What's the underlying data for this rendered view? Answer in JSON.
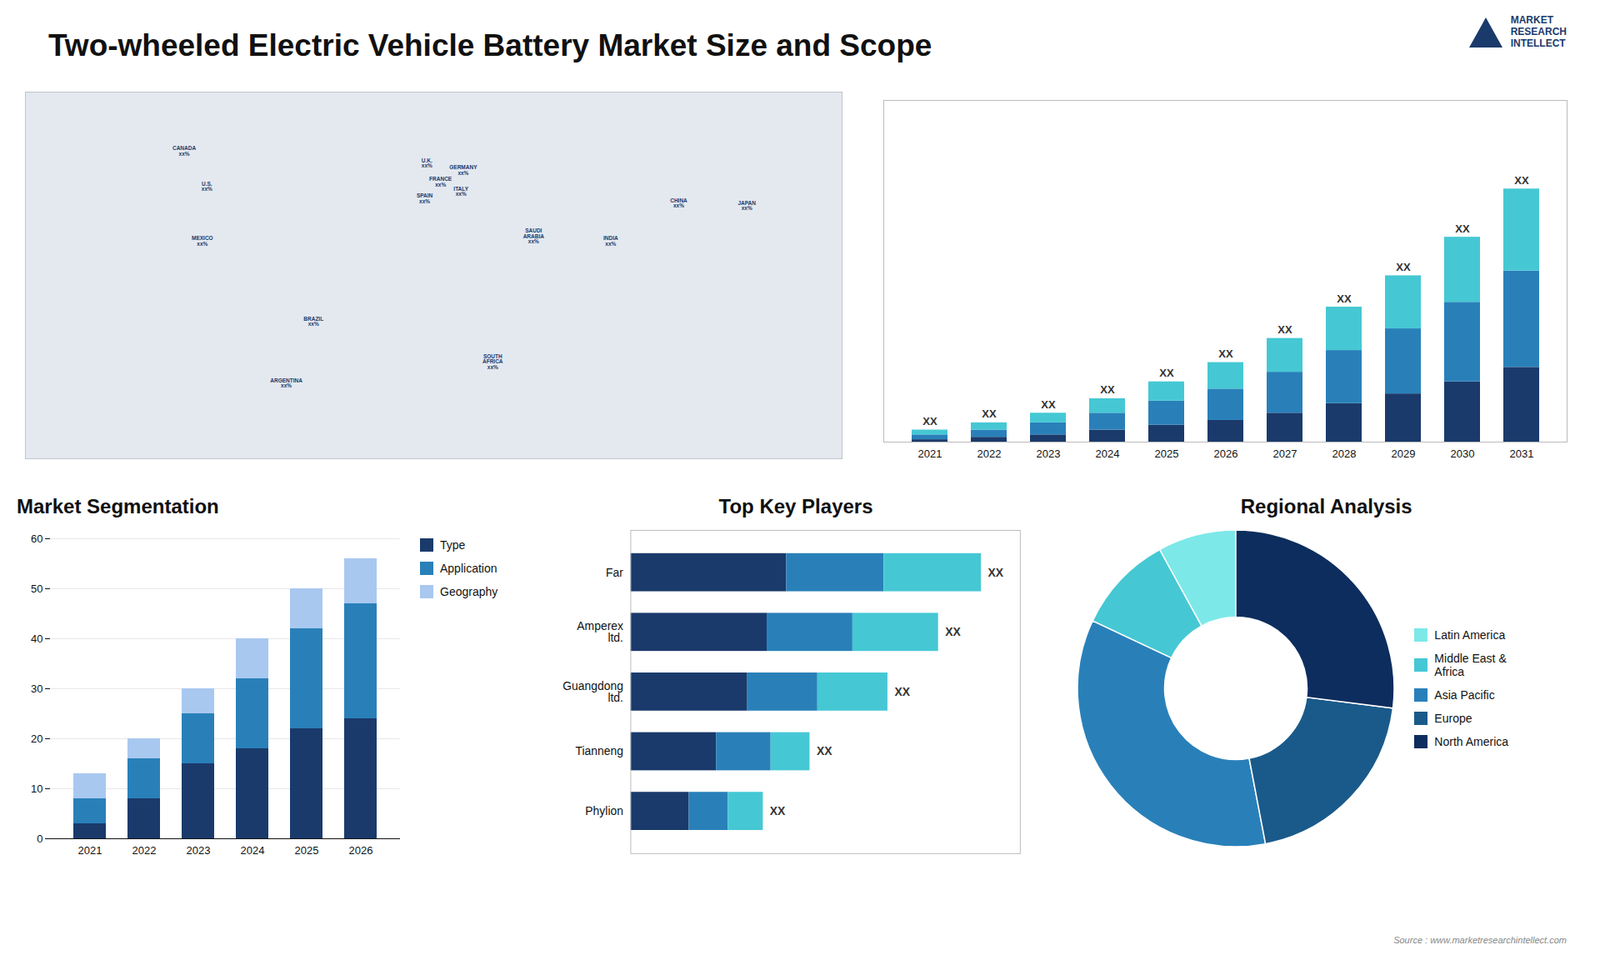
{
  "title": "Two-wheeled Electric Vehicle Battery Market Size and Scope",
  "annotations": [
    "MARKET\nRESEARCH\nINTELLECT",
    "Source : www.marketresearchintellect.com"
  ],
  "chart_data": [
    {
      "type": "map",
      "categories": [
        "CANADA",
        "U.S.",
        "MEXICO",
        "BRAZIL",
        "ARGENTINA",
        "U.K.",
        "FRANCE",
        "SPAIN",
        "GERMANY",
        "ITALY",
        "SAUDI\nARABIA",
        "SOUTH\nAFRICA",
        "CHINA",
        "INDIA",
        "JAPAN"
      ],
      "x": [
        -110,
        -100,
        -102,
        -53,
        -65,
        -3,
        3,
        -4,
        13,
        12,
        44,
        26,
        108,
        78,
        138
      ],
      "y": [
        60,
        45,
        22,
        -12,
        -38,
        55,
        47,
        40,
        52,
        43,
        24,
        -29,
        38,
        22,
        37
      ],
      "value_labels": [
        "xx%",
        "xx%",
        "xx%",
        "xx%",
        "xx%",
        "xx%",
        "xx%",
        "xx%",
        "xx%",
        "xx%",
        "xx%",
        "xx%",
        "xx%",
        "xx%",
        "xx%"
      ],
      "xlim": [
        -180,
        180
      ],
      "ylim": [
        -70,
        85
      ],
      "tick_labels": false
    },
    {
      "type": "bar",
      "stacked": true,
      "categories": [
        "2021",
        "2022",
        "2023",
        "2024",
        "2025",
        "2026",
        "2027",
        "2028",
        "2029",
        "2030",
        "2031"
      ],
      "series": [
        {
          "color": "#1a3a6b",
          "values": [
            1,
            2,
            3,
            5,
            7,
            9,
            12,
            16,
            20,
            25,
            31
          ]
        },
        {
          "color": "#2980b9",
          "values": [
            2,
            3,
            5,
            7,
            10,
            13,
            17,
            22,
            27,
            33,
            40
          ]
        },
        {
          "color": "#45c8d4",
          "values": [
            2,
            3,
            4,
            6,
            8,
            11,
            14,
            18,
            22,
            27,
            34
          ]
        }
      ],
      "value_labels": [
        "XX",
        "XX",
        "XX",
        "XX",
        "XX",
        "XX",
        "XX",
        "XX",
        "XX",
        "XX",
        "XX"
      ],
      "ylim": [
        0,
        141.75
      ],
      "yticks": [],
      "tick_labels": "x"
    },
    {
      "type": "bar",
      "title": "Market Segmentation",
      "stacked": true,
      "categories": [
        "2021",
        "2022",
        "2023",
        "2024",
        "2025",
        "2026"
      ],
      "series": [
        {
          "name": "Type",
          "color": "#1a3a6b",
          "values": [
            3,
            8,
            15,
            18,
            22,
            24
          ]
        },
        {
          "name": "Application",
          "color": "#2980b9",
          "values": [
            5,
            8,
            10,
            14,
            20,
            23
          ]
        },
        {
          "name": "Geography",
          "color": "#a8c8f0",
          "values": [
            5,
            4,
            5,
            8,
            8,
            9
          ]
        }
      ],
      "ylim": [
        0,
        60
      ],
      "yticks": [
        0,
        10,
        20,
        30,
        40,
        50,
        60
      ],
      "grid": true,
      "legend": "right"
    },
    {
      "type": "bar",
      "title": "Top Key Players",
      "orientation": "horizontal",
      "stacked": true,
      "categories": [
        "Far",
        "Amperex\nltd.",
        "Guangdong\nltd.",
        "Tianneng",
        "Phylion"
      ],
      "series": [
        {
          "color": "#1a3a6b",
          "values": [
            0.4,
            0.35,
            0.3,
            0.22,
            0.15
          ]
        },
        {
          "color": "#2980b9",
          "values": [
            0.25,
            0.22,
            0.18,
            0.14,
            0.1
          ]
        },
        {
          "color": "#45c8d4",
          "values": [
            0.25,
            0.22,
            0.18,
            0.1,
            0.09
          ]
        }
      ],
      "value_labels": [
        "XX",
        "XX",
        "XX",
        "XX",
        "XX"
      ],
      "xlim": [
        0,
        1
      ],
      "xticks": [],
      "tick_labels": "y"
    },
    {
      "type": "donut",
      "title": "Regional Analysis",
      "categories": [
        "Latin America",
        "Middle East &\nAfrica",
        "Asia Pacific",
        "Europe",
        "North America"
      ],
      "values": [
        8,
        10,
        35,
        20,
        27
      ],
      "colors": [
        "#7de8e8",
        "#45c8d4",
        "#2980b9",
        "#1a5a8a",
        "#0d2d5e"
      ],
      "legend": "right"
    }
  ]
}
